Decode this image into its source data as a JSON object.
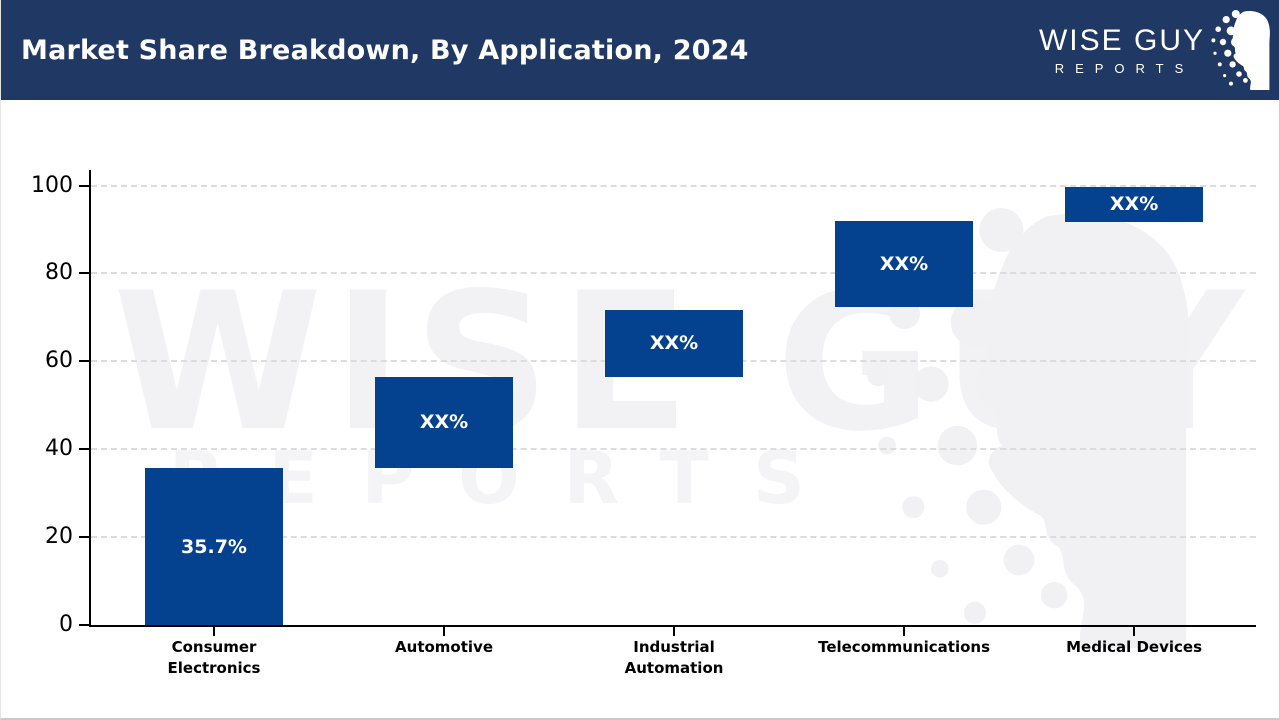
{
  "header": {
    "title": "Market Share Breakdown, By Application, 2024",
    "logo": {
      "wordmark": "WISE GUY",
      "subtext": "REPORTS"
    }
  },
  "watermark": {
    "wordmark": "WISE GUY",
    "subtext": "REPORTS"
  },
  "colors": {
    "header_bg": "#1f3864",
    "header_text": "#ffffff",
    "bar": "#04428f",
    "bar_label": "#ffffff",
    "axis": "#000000",
    "grid": "#dcdcdc",
    "tick_label": "#000000",
    "watermark": "#f1f1f4"
  },
  "chart_data": {
    "type": "bar",
    "subtype": "waterfall-floating-bars",
    "title": "Market Share Breakdown, By Application, 2024",
    "categories": [
      "Consumer\nElectronics",
      "Automotive",
      "Industrial\nAutomation",
      "Telecommunications",
      "Medical Devices"
    ],
    "series": [
      {
        "name": "Consumer Electronics",
        "start": 0,
        "end": 35.7,
        "label": "35.7%"
      },
      {
        "name": "Automotive",
        "start": 35.8,
        "end": 56.4,
        "label": "XX%"
      },
      {
        "name": "Industrial Automation",
        "start": 56.4,
        "end": 71.8,
        "label": "XX%"
      },
      {
        "name": "Telecommunications",
        "start": 72.4,
        "end": 92.0,
        "label": "XX%"
      },
      {
        "name": "Medical Devices",
        "start": 91.8,
        "end": 99.6,
        "label": "XX%"
      }
    ],
    "xlabel": "",
    "ylabel": "",
    "yticks": [
      0,
      20,
      40,
      60,
      80,
      100
    ],
    "ylim": [
      0,
      104
    ],
    "grid": "horizontal-dashed",
    "legend": "none"
  }
}
